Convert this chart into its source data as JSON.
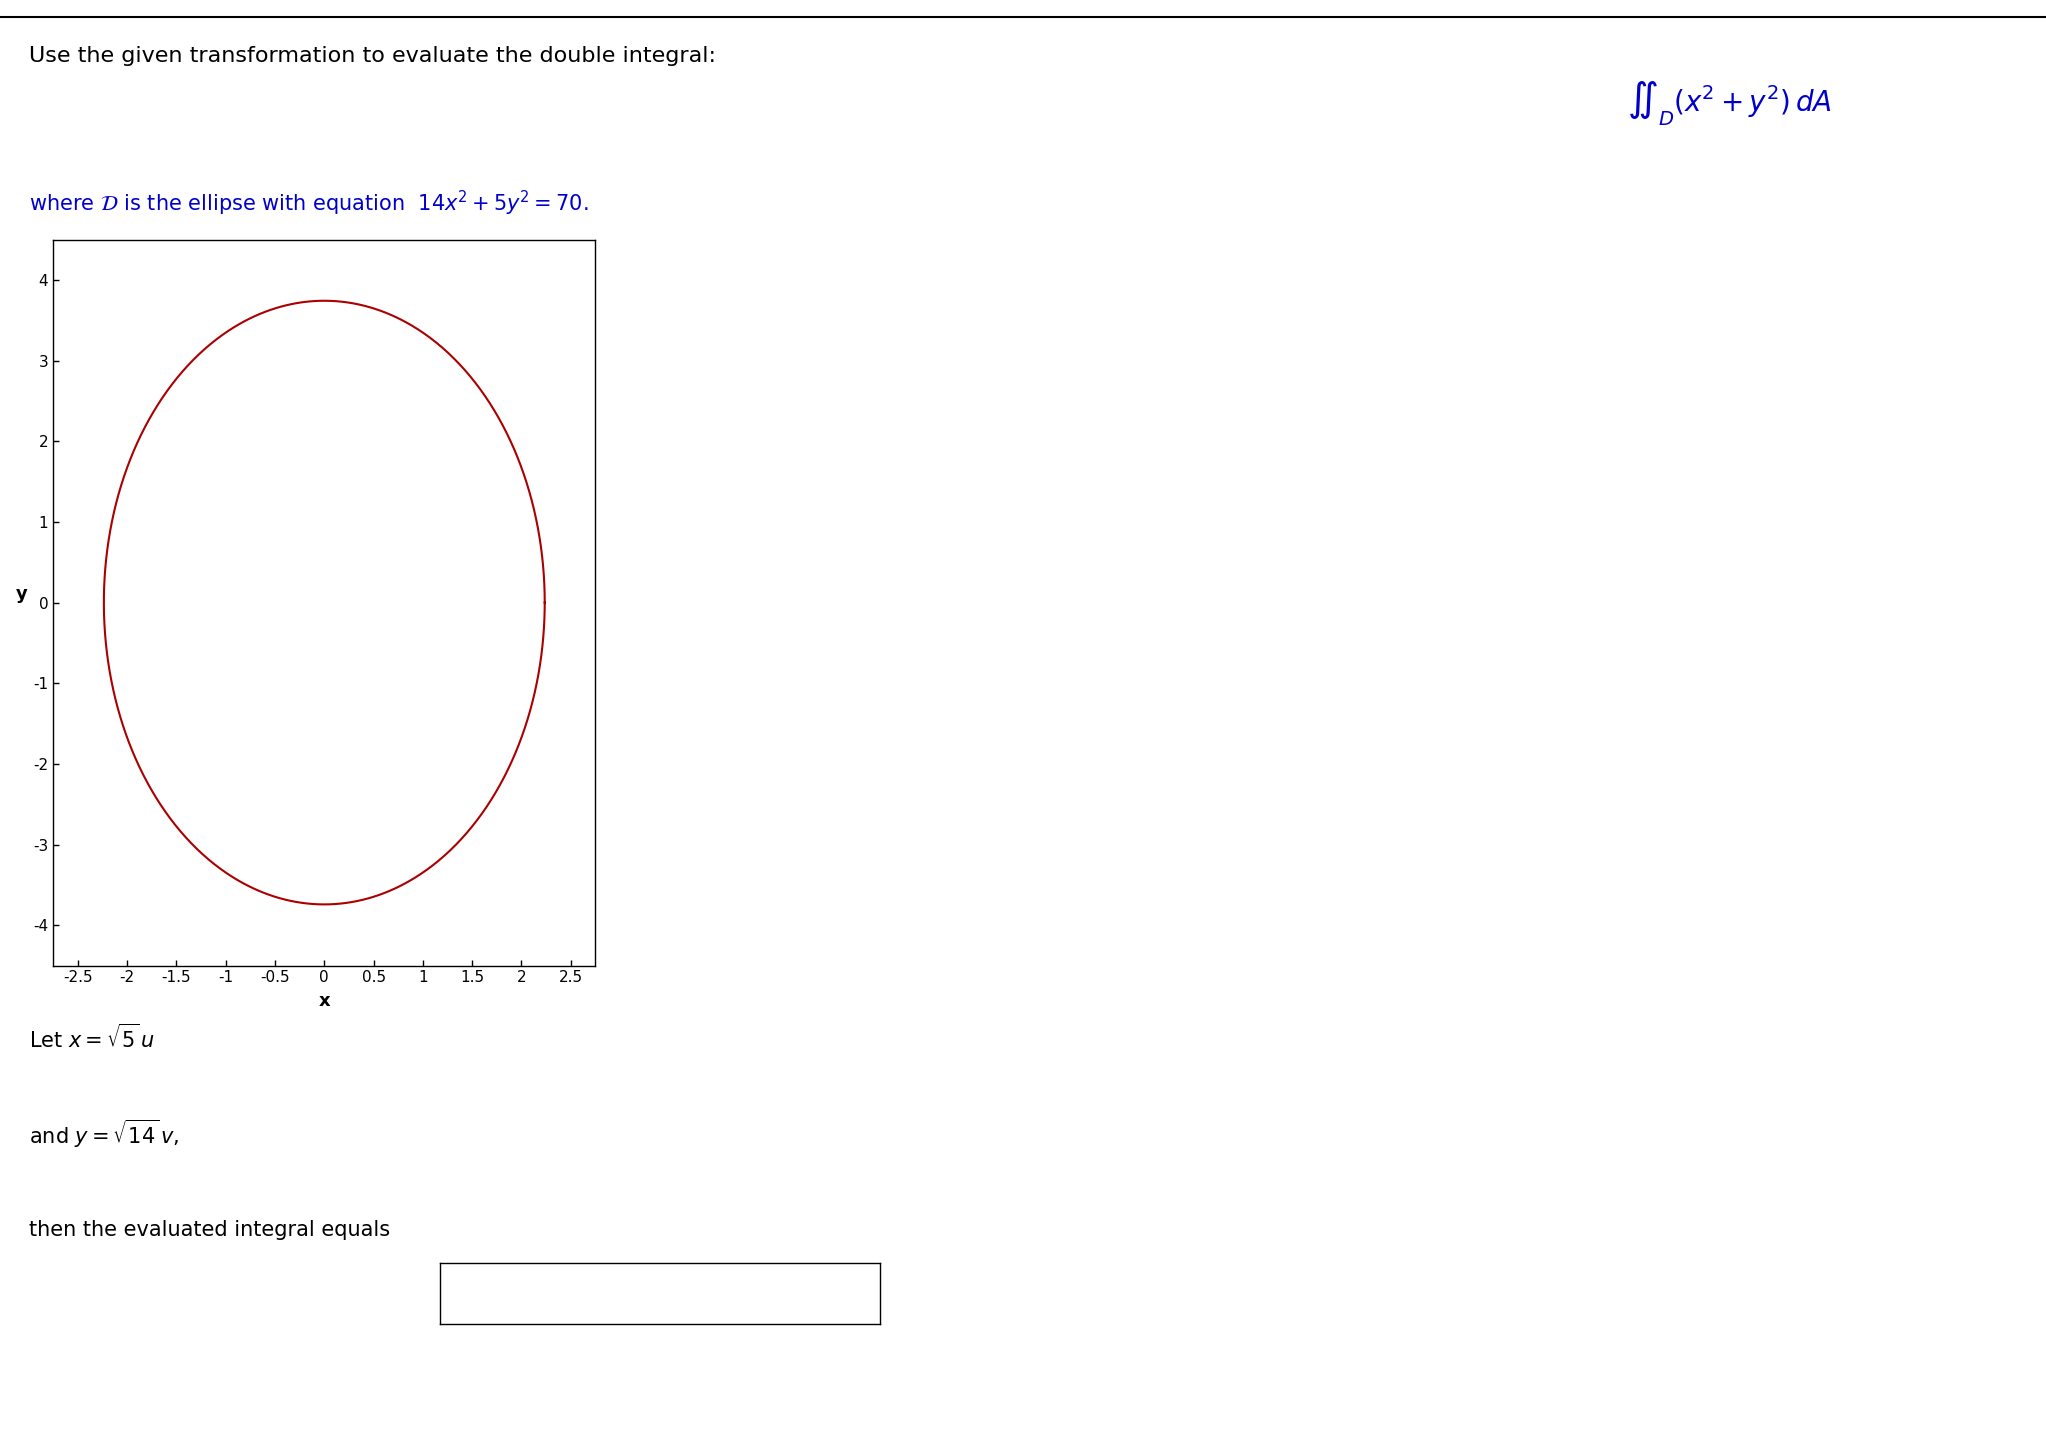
{
  "title_text": "Use the given transformation to evaluate the double integral:",
  "integral_latex": "$\\iint_{D} (x^2 + y^2)\\, dA$",
  "where_text1": "where ",
  "where_D": "$\\mathcal{D}$",
  "where_text2": " is the ellipse with equation ",
  "where_eq": "$14x^2 + 5y^2 = 70$.",
  "let_text": "Let $x = \\sqrt{5}\\, u$",
  "and_text": "and $y = \\sqrt{14}\\, v,$",
  "then_text": "then the evaluated integral equals",
  "ellipse_color": "#aa0000",
  "ellipse_linewidth": 1.5,
  "xlim": [
    -2.75,
    2.75
  ],
  "ylim": [
    -4.5,
    4.5
  ],
  "xticks": [
    -2.5,
    -2.0,
    -1.5,
    -1.0,
    -0.5,
    0.0,
    0.5,
    1.0,
    1.5,
    2.0,
    2.5
  ],
  "yticks": [
    -4,
    -3,
    -2,
    -1,
    0,
    1,
    2,
    3,
    4
  ],
  "xlabel": "x",
  "ylabel": "y",
  "bg_color": "#ffffff",
  "text_color": "#000000",
  "blue_color": "#0000cc",
  "title_fontsize": 16,
  "body_fontsize": 15,
  "integral_fontsize": 20,
  "tick_fontsize": 11,
  "axis_label_fontsize": 13
}
